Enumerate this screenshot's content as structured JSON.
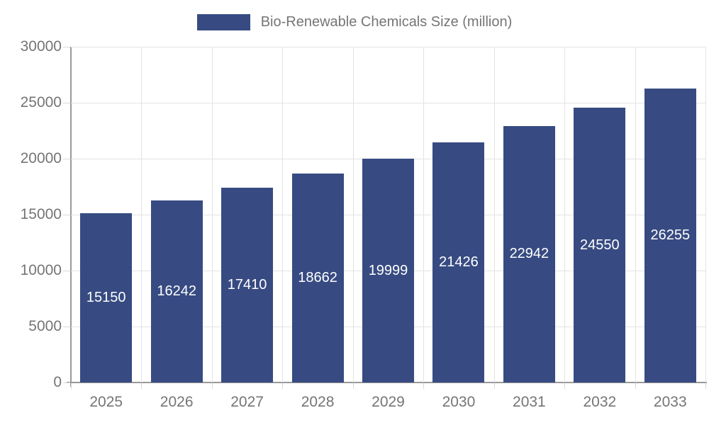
{
  "legend": {
    "label": "Bio-Renewable Chemicals Size (million)"
  },
  "colors": {
    "bar": "#374B82",
    "axis_line": "#999999",
    "grid_line": "#e3e3e3",
    "tick_text": "#757575",
    "bar_label_text": "#ffffff",
    "background": "#ffffff"
  },
  "chart_data": {
    "type": "bar",
    "title": "Bio-Renewable Chemicals Size (million)",
    "categories": [
      "2025",
      "2026",
      "2027",
      "2028",
      "2029",
      "2030",
      "2031",
      "2032",
      "2033"
    ],
    "values": [
      15150,
      16242,
      17410,
      18662,
      19999,
      21426,
      22942,
      24550,
      26255
    ],
    "value_labels": [
      "15150",
      "16242",
      "17410",
      "18662",
      "19999",
      "21426",
      "22942",
      "24550",
      "26255"
    ],
    "xlabel": "",
    "ylabel": "",
    "ylim": [
      0,
      30000
    ],
    "ytick_step": 5000,
    "ytick_labels": [
      "0",
      "5000",
      "10000",
      "15000",
      "20000",
      "25000",
      "30000"
    ],
    "grid": true,
    "legend_position": "top-center",
    "bar_label_placement": "inside-center"
  }
}
